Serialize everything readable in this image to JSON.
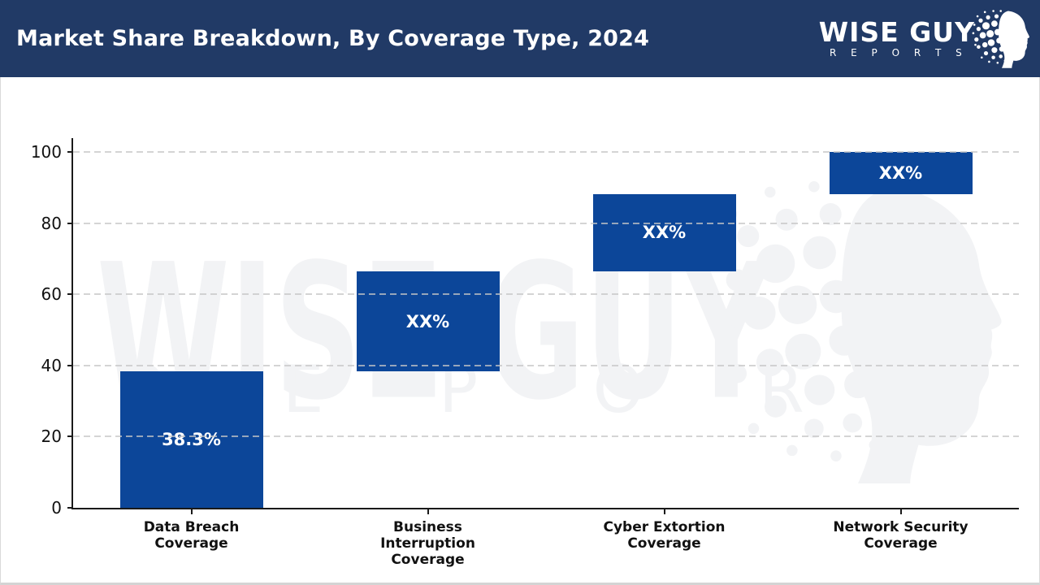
{
  "header": {
    "title": "Market Share Breakdown, By Coverage Type, 2024",
    "logo": {
      "line1": "WISE GUY",
      "line2": "R E P O R T S"
    }
  },
  "watermark": {
    "line1": "WISE GUY",
    "line2": "R E P O R T S"
  },
  "chart_data": {
    "type": "bar",
    "subtype": "waterfall",
    "title": "Market Share Breakdown, By Coverage Type, 2024",
    "categories": [
      "Data Breach\nCoverage",
      "Business\nInterruption\nCoverage",
      "Cyber Extortion\nCoverage",
      "Network Security\nCoverage"
    ],
    "segments": [
      {
        "category": "Data Breach Coverage",
        "start": 0,
        "end": 38.3,
        "label": "38.3%"
      },
      {
        "category": "Business Interruption Coverage",
        "start": 38.3,
        "end": 66.4,
        "label": "XX%"
      },
      {
        "category": "Cyber Extortion Coverage",
        "start": 66.4,
        "end": 88.2,
        "label": "XX%"
      },
      {
        "category": "Network Security Coverage",
        "start": 88.2,
        "end": 100,
        "label": "XX%"
      }
    ],
    "ylim": [
      0,
      100
    ],
    "yticks": [
      0,
      20,
      40,
      60,
      80,
      100
    ],
    "xlabel": "",
    "ylabel": "",
    "grid": "horizontal-dashed",
    "legend": "none",
    "colors": {
      "bar": "#0c4699",
      "bar_label": "#ffffff",
      "header_bg": "#213a66",
      "header_text": "#ffffff",
      "axis": "#1a1a1a",
      "gridline": "#c6c6c6",
      "watermark": "#f2f3f5"
    }
  }
}
